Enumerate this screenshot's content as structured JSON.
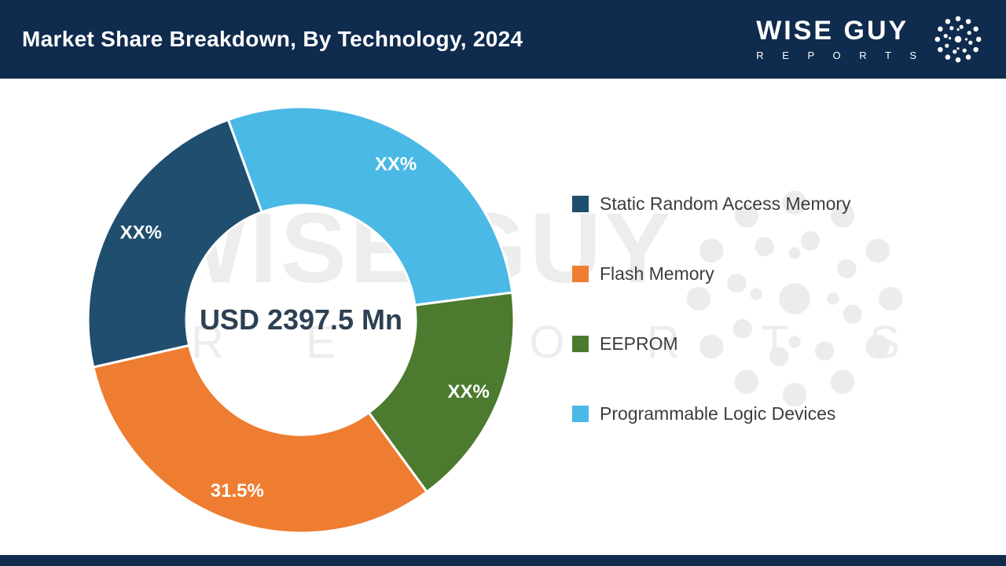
{
  "header": {
    "title": "Market Share Breakdown, By Technology, 2024",
    "logo": {
      "name": "WISE GUY",
      "sub": "R E P O R T S"
    }
  },
  "watermark": {
    "line1": "WISE GUY",
    "line2": "R E P O R T S"
  },
  "chart_data": {
    "type": "pie",
    "subtype": "donut",
    "title": "Market Share Breakdown, By Technology, 2024",
    "center_label": "USD 2397.5 Mn",
    "legend_position": "right",
    "start_angle_deg": -20,
    "draw_order": [
      3,
      2,
      1,
      0
    ],
    "segments": [
      {
        "key": "sram",
        "name": "Static Random Access Memory",
        "label": "XX%",
        "value_pct_est": 23.0,
        "color": "#1f4e6f"
      },
      {
        "key": "flash-memory",
        "name": "Flash Memory",
        "label": "31.5%",
        "value_pct_est": 31.5,
        "color": "#ee7d31"
      },
      {
        "key": "eeprom",
        "name": "EEPROM",
        "label": "XX%",
        "value_pct_est": 17.0,
        "color": "#4c7b2f"
      },
      {
        "key": "pld",
        "name": "Programmable Logic Devices",
        "label": "XX%",
        "value_pct_est": 28.5,
        "color": "#4ab9e6"
      }
    ]
  },
  "colors": {
    "header_bg": "#0f2b4d",
    "footer_bg": "#0f2b4d",
    "center_text": "#2e4053",
    "watermark": "#ededed",
    "segment_separator": "#ffffff"
  }
}
